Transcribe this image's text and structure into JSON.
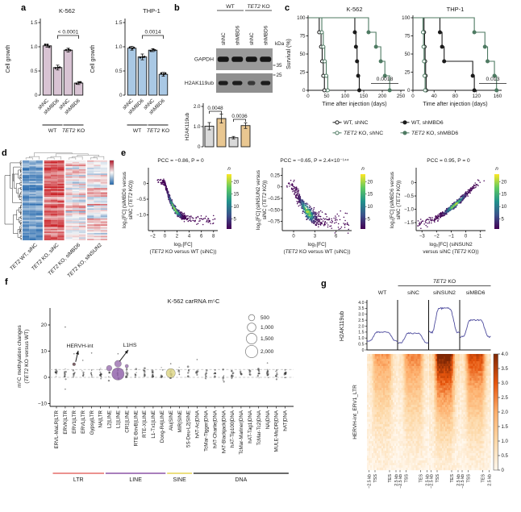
{
  "panels": {
    "a": {
      "label": "a",
      "chart_data": [
        {
          "type": "bar",
          "title": "K-562",
          "ylabel": "Cell growth",
          "ylim": [
            0,
            1.5
          ],
          "yticks": [
            "0",
            "0.5",
            "1.0",
            "1.5"
          ],
          "ytick_vals": [
            0,
            0.5,
            1.0,
            1.5
          ],
          "categories": [
            "shNC",
            "shMBD6",
            "shNC",
            "shMBD6"
          ],
          "values": [
            1.02,
            0.57,
            0.93,
            0.25
          ],
          "errors": [
            0.03,
            0.05,
            0.04,
            0.03
          ],
          "bar_color": "#d8c3d3",
          "group_labels": [
            "WT",
            "TET2 KO"
          ],
          "pvalue": "< 0.0001",
          "pvalue_span": [
            1,
            3
          ]
        },
        {
          "type": "bar",
          "title": "THP-1",
          "ylabel": "Cell growth",
          "ylim": [
            0,
            1.5
          ],
          "yticks": [
            "0",
            "0.5",
            "1.0",
            "1.5"
          ],
          "ytick_vals": [
            0,
            0.5,
            1.0,
            1.5
          ],
          "categories": [
            "shNC",
            "shMBD6",
            "shNC",
            "shMBD6"
          ],
          "values": [
            0.97,
            0.79,
            0.93,
            0.43
          ],
          "errors": [
            0.04,
            0.06,
            0.03,
            0.04
          ],
          "bar_color": "#a9c8e4",
          "group_labels": [
            "WT",
            "TET2 KO"
          ],
          "pvalue": "0.0014",
          "pvalue_span": [
            1,
            3
          ]
        }
      ]
    },
    "b": {
      "label": "b",
      "blot": {
        "group_labels": [
          "WT",
          "TET2 KO"
        ],
        "lane_labels": [
          "shNC",
          "shMBD6",
          "shNC",
          "shMBD6"
        ],
        "unit": "kDa",
        "rows": [
          {
            "name": "GAPDH",
            "marker": "35"
          },
          {
            "name": "H2AK119ub",
            "marker": "25"
          }
        ]
      },
      "bar_chart": {
        "type": "bar",
        "ylabel": "H2AK119ub",
        "ylim": [
          0,
          2.0
        ],
        "yticks": [
          "0",
          "1.0",
          "2.0"
        ],
        "ytick_vals": [
          0,
          1.0,
          2.0
        ],
        "categories": [
          "shNC",
          "shMBD6",
          "shNC",
          "shMBD6"
        ],
        "values": [
          1.02,
          1.4,
          0.45,
          1.05
        ],
        "errors": [
          0.18,
          0.22,
          0.06,
          0.14
        ],
        "bar_colors": [
          "#d9d9d9",
          "#e9c791",
          "#d9d9d9",
          "#e9c791"
        ],
        "pvalues": [
          {
            "text": "0.0048",
            "from": 0,
            "to": 1
          },
          {
            "text": "0.0036",
            "from": 2,
            "to": 3
          }
        ]
      }
    },
    "c": {
      "label": "c",
      "ylabel": "Survival (%)",
      "xlabel": "Time after injection (days)",
      "yticks": [
        0,
        25,
        50,
        75,
        100
      ],
      "chart_data": [
        {
          "type": "line",
          "title": "K-562",
          "xlim": [
            0,
            250
          ],
          "xticks": [
            0,
            50,
            100,
            150,
            200,
            250
          ],
          "pvalue": "0.0018",
          "series": [
            {
              "name": "WT, shNC",
              "color": "#1a1a1a",
              "fill": "open",
              "drop_times": [
                30,
                35,
                38,
                41,
                44
              ]
            },
            {
              "name": "TET2 KO, shNC",
              "color": "#4e7a62",
              "fill": "open",
              "drop_times": [
                37,
                41,
                45,
                49,
                53
              ]
            },
            {
              "name": "WT, shMBD6",
              "color": "#1a1a1a",
              "fill": "solid",
              "drop_times": [
                126,
                129,
                132,
                135,
                138
              ]
            },
            {
              "name": "TET2 KO, shMBD6",
              "color": "#4e7a62",
              "fill": "solid",
              "drop_times": [
                163,
                183,
                196,
                207,
                220
              ]
            }
          ]
        },
        {
          "type": "line",
          "title": "THP-1",
          "xlim": [
            0,
            160
          ],
          "xticks": [
            0,
            40,
            80,
            120,
            160
          ],
          "pvalue": "0.013",
          "series": [
            {
              "name": "WT, shNC",
              "color": "#1a1a1a",
              "fill": "open",
              "drop_times": [
                21,
                22,
                23,
                24,
                25
              ]
            },
            {
              "name": "TET2 KO, shNC",
              "color": "#4e7a62",
              "fill": "open",
              "drop_times": [
                19,
                20,
                21,
                22,
                23
              ]
            },
            {
              "name": "WT, shMBD6",
              "color": "#1a1a1a",
              "fill": "solid",
              "drop_times": [
                51,
                55,
                59,
                113,
                116
              ]
            },
            {
              "name": "TET2 KO, shMBD6",
              "color": "#4e7a62",
              "fill": "solid",
              "drop_times": [
                116,
                136,
                141,
                154,
                158
              ]
            }
          ]
        }
      ],
      "legend": [
        {
          "label": "WT, shNC",
          "color": "#1a1a1a",
          "fill": "open"
        },
        {
          "label": "WT, shMBD6",
          "color": "#1a1a1a",
          "fill": "solid"
        },
        {
          "label": "TET2 KO, shNC",
          "color": "#4e7a62",
          "fill": "open"
        },
        {
          "label": "TET2 KO, shMBD6",
          "color": "#4e7a62",
          "fill": "solid"
        }
      ]
    },
    "d": {
      "label": "d",
      "type": "heatmap",
      "columns": [
        "TET2 WT, siNC",
        "TET2 KO, siNC",
        "TET2 KO, siMBD6",
        "TET2 KO, siNSUN2"
      ],
      "colorbar": {
        "high": "#b2182b",
        "mid": "#f7f7f7",
        "low": "#2166ac"
      }
    },
    "e": {
      "label": "e",
      "plots": [
        {
          "type": "scatter",
          "pcc": "PCC = −0.86, P = 0",
          "xlabel_lines": [
            "log₂[FC]",
            "(TET2 KO versus WT (siNC))"
          ],
          "ylabel_lines": [
            "log₂[FC] (siMBD6 versus",
            "siNC (TET2 KO))"
          ],
          "xlim": [
            -2.7,
            8.7
          ],
          "xticks": [
            -2,
            0,
            2,
            4,
            6,
            8
          ],
          "ylim": [
            -1.5,
            0.45
          ],
          "yticks": [
            "0",
            "−0.5",
            "−1.0"
          ],
          "ytick_vals": [
            0,
            -0.5,
            -1.0
          ],
          "colorbar": {
            "title": "n",
            "ticks": [
              5,
              10,
              15,
              20
            ]
          },
          "trend": [
            [
              -0.5,
              0.08
            ],
            [
              0,
              0
            ],
            [
              0.5,
              -0.33
            ],
            [
              1,
              -0.58
            ],
            [
              1.5,
              -0.78
            ],
            [
              2,
              -0.92
            ],
            [
              2.5,
              -1.0
            ],
            [
              3,
              -1.06
            ],
            [
              4,
              -1.12
            ],
            [
              5,
              -1.15
            ],
            [
              6,
              -1.17
            ],
            [
              8.5,
              -1.2
            ]
          ]
        },
        {
          "type": "scatter",
          "pcc": "PCC = −0.65, P = 2.4×10⁻¹⁴⁴",
          "xlabel_lines": [
            "log₂[FC]",
            "(TET2 KO versus WT (siNC))"
          ],
          "ylabel_lines": [
            "log₂[FC] (siNSUN2 versus",
            "siNC (TET2 KO))"
          ],
          "xlim": [
            -1.6,
            8.2
          ],
          "xticks": [
            0,
            3,
            6
          ],
          "ylim": [
            -0.95,
            0.38
          ],
          "yticks": [
            "0.25",
            "0",
            "−0.25",
            "−0.50",
            "−0.75"
          ],
          "ytick_vals": [
            0.25,
            0,
            -0.25,
            -0.5,
            -0.75
          ],
          "colorbar": {
            "title": "n",
            "ticks": [
              5,
              10,
              15,
              20
            ]
          },
          "trend": [
            [
              -0.5,
              0.05
            ],
            [
              0,
              -0.02
            ],
            [
              0.5,
              -0.18
            ],
            [
              1,
              -0.33
            ],
            [
              1.5,
              -0.45
            ],
            [
              2,
              -0.55
            ],
            [
              2.5,
              -0.62
            ],
            [
              3,
              -0.67
            ],
            [
              4,
              -0.72
            ],
            [
              5,
              -0.74
            ],
            [
              6,
              -0.75
            ],
            [
              8.2,
              -0.76
            ]
          ]
        },
        {
          "type": "scatter",
          "pcc": "PCC = 0.95, P = 0",
          "xlabel_lines": [
            "log₂[FC] (siNSUN2",
            "versus siNC (TET2 KO))"
          ],
          "ylabel_lines": [
            "log₂[FC] (siMBD6 versus",
            "siNC (TET2 KO))"
          ],
          "xlim": [
            -3.4,
            1.35
          ],
          "xticks": [
            -3,
            -2,
            -1,
            0,
            1
          ],
          "ylim": [
            -1.8,
            0.5
          ],
          "yticks": [
            "0",
            "−0.5",
            "−1.0",
            "−1.5"
          ],
          "ytick_vals": [
            0,
            -0.5,
            -1.0,
            -1.5
          ],
          "colorbar": {
            "title": "n",
            "ticks": [
              5,
              10,
              15,
              20
            ]
          },
          "trend": [
            [
              -3.3,
              -1.58
            ],
            [
              -2.5,
              -1.45
            ],
            [
              -2,
              -1.32
            ],
            [
              -1.5,
              -1.15
            ],
            [
              -1,
              -0.95
            ],
            [
              -0.5,
              -0.72
            ],
            [
              0,
              -0.45
            ],
            [
              0.5,
              -0.18
            ],
            [
              1.1,
              0.12
            ]
          ]
        }
      ]
    },
    "f": {
      "label": "f",
      "type": "bubble",
      "title": "K-562 carRNA m⁵C",
      "ylabel_lines": [
        "m⁵C methylation changes",
        "(TET2 KO versus WT)"
      ],
      "yticks": [
        "−10",
        "0",
        "10",
        "20"
      ],
      "ytick_vals": [
        -10,
        0,
        10,
        20
      ],
      "dashed_at": [
        0,
        3
      ],
      "categories": [
        "ERVL-MaLR|LTR",
        "ERVK|LTR",
        "ERV1|LTR",
        "ERVL|LTR",
        "Gypsy|LTR",
        "NA|LTR",
        "L2|LINE",
        "L1|LINE",
        "CR1|LINE",
        "RTE-BovB|LINE",
        "RTE-X|LINE",
        "L1-Tx1|LINE",
        "Dong-R4|LINE",
        "Alu|SINE",
        "MIR|SINE",
        "5S-Deu-L2|SINE",
        "hAT-Ac|DNA",
        "TcMar-Tigger|DNA",
        "hAT-Charlie|DNA",
        "hAT-Blackjack|DNA",
        "hAT-Tip100|DNA",
        "TcMar-Mariner|DNA",
        "hAT-Tag1|DNA",
        "TcMar-Tc2|DNA",
        "NA|DNA",
        "MULE-MuDR|DNA",
        "hAT|DNA"
      ],
      "groups": [
        {
          "label": "LTR",
          "span": [
            0,
            5
          ],
          "color": "#e8837f"
        },
        {
          "label": "LINE",
          "span": [
            6,
            12
          ],
          "color": "#9b6bb3"
        },
        {
          "label": "SINE",
          "span": [
            13,
            15
          ],
          "color": "#e8d96b"
        },
        {
          "label": "DNA",
          "span": [
            16,
            26
          ],
          "color": "#555555"
        }
      ],
      "size_legend": {
        "sizes": [
          500,
          1000,
          1500,
          2000
        ],
        "labels": [
          "500",
          "1,000",
          "1,500",
          "2,000"
        ]
      },
      "annotations": [
        {
          "text": "HERVH-int",
          "cat": 2,
          "v": 5.0,
          "lx": 99,
          "ly": 89
        },
        {
          "text": "L1HS",
          "cat": 7,
          "v": 5.2,
          "lx": 161,
          "ly": 88
        }
      ],
      "bubbles": [
        {
          "cat": 2,
          "v": 5.0,
          "size": 120,
          "color": "#5d3a42"
        },
        {
          "cat": 6,
          "v": 3.5,
          "size": 400,
          "color": "#9a6fb0"
        },
        {
          "cat": 7,
          "v": 5.2,
          "size": 600,
          "color": "#9a6fb0"
        },
        {
          "cat": 7,
          "v": 1.3,
          "size": 2000,
          "color": "#8d5ca8"
        },
        {
          "cat": 8,
          "v": 4.3,
          "size": 150,
          "color": "#9a6fb0"
        },
        {
          "cat": 13,
          "v": 1.6,
          "size": 1100,
          "color": "#ddd583"
        }
      ],
      "extra_dots": [
        {
          "cat": 1,
          "v": 19.2
        },
        {
          "cat": 2,
          "v": 9.0
        },
        {
          "cat": 3,
          "v": 6.5
        },
        {
          "cat": 4,
          "v": 9.3
        },
        {
          "cat": 7,
          "v": 9.0
        },
        {
          "cat": 13,
          "v": 5.2
        },
        {
          "cat": 16,
          "v": 6.8
        },
        {
          "cat": 24,
          "v": 5.5
        },
        {
          "cat": 1,
          "v": -4.5
        }
      ]
    },
    "g": {
      "label": "g",
      "group_header": "TET2 KO",
      "columns": [
        "WT",
        "siNC",
        "siNSUN2",
        "siMBD6"
      ],
      "profile": {
        "ylabel": "H2AK119ub",
        "yticks": [
          "0",
          "0.5",
          "1.0",
          "1.5",
          "2.0",
          "2.5",
          "3.0",
          "3.5",
          "4.0"
        ],
        "line_color": "#4e4c9e",
        "params": [
          {
            "name": "WT",
            "base": 0.75,
            "peak": 1.5
          },
          {
            "name": "siNC",
            "base": 0.6,
            "peak": 1.4
          },
          {
            "name": "siNSUN2",
            "base": 1.5,
            "peak": 3.5
          },
          {
            "name": "siMBD6",
            "base": 1.1,
            "peak": 2.5
          }
        ]
      },
      "heatmap": {
        "row_label": "HERVH-int_ERV1_LTR",
        "colorbar_ticks": [
          "4.0",
          "3.5",
          "3.0",
          "2.5",
          "2.0",
          "1.5",
          "1.0",
          "0.5",
          "0"
        ],
        "xticks": [
          "−2.5 kb",
          "TSS",
          "TES",
          "2.5 kb"
        ],
        "col_strengths": [
          0.52,
          0.58,
          1.0,
          0.78
        ]
      }
    }
  }
}
